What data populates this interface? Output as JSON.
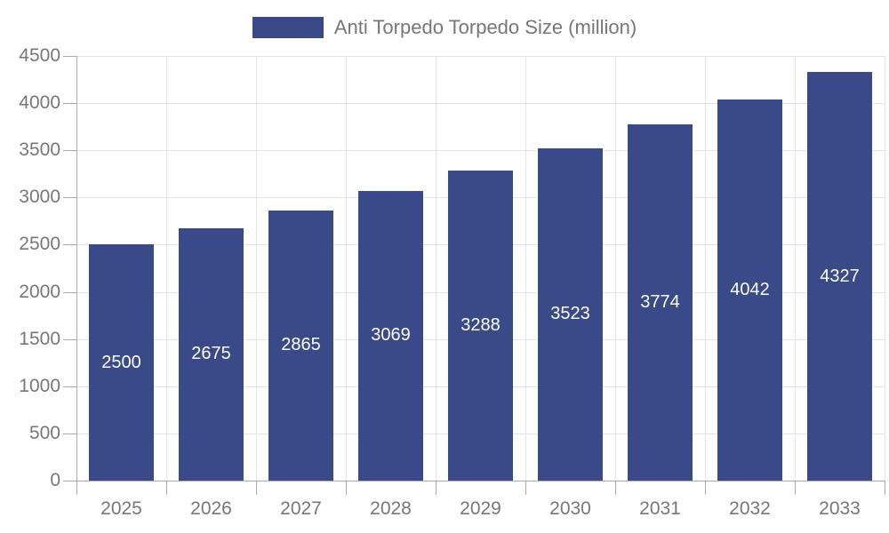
{
  "legend": {
    "label": "Anti Torpedo Torpedo Size (million)"
  },
  "colors": {
    "bar": "#3A4A88",
    "axis": "#AAAAAE",
    "grid": "#E4E4E8",
    "axis_label": "#76777A",
    "value_label": "#FFFFFF",
    "background": "#FFFFFF"
  },
  "chart_data": {
    "type": "bar",
    "title": "Anti Torpedo Torpedo Size (million)",
    "series": [
      {
        "name": "Anti Torpedo Torpedo Size (million)",
        "values": [
          2500,
          2675,
          2865,
          3069,
          3288,
          3523,
          3774,
          4042,
          4327
        ]
      }
    ],
    "categories": [
      "2025",
      "2026",
      "2027",
      "2028",
      "2029",
      "2030",
      "2031",
      "2032",
      "2033"
    ],
    "xlabel": "",
    "ylabel": "",
    "ylim": [
      0,
      4500
    ],
    "ytick_step": 500,
    "yticks": [
      0,
      500,
      1000,
      1500,
      2000,
      2500,
      3000,
      3500,
      4000,
      4500
    ],
    "grid": true,
    "legend_position": "top-center",
    "value_labels": "inside-center"
  }
}
